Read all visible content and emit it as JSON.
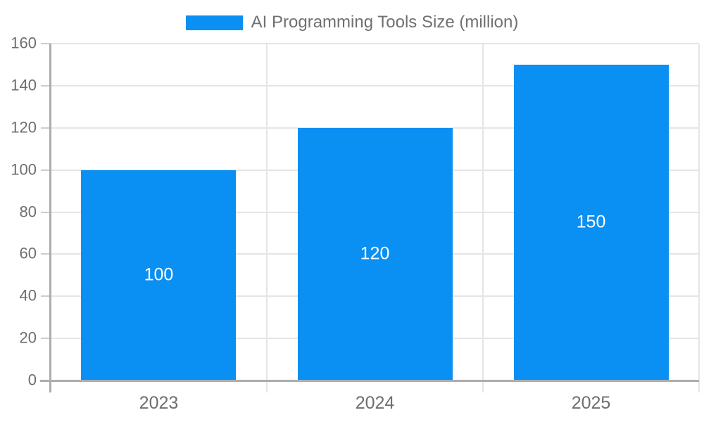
{
  "style": {
    "bar-color": "#0A8FF2",
    "grid-color": "#E5E5E5",
    "axis-color": "#ADADAD",
    "tick-color": "#CDCDCD",
    "axis-label-color": "#6E6E6E",
    "data-label-color": "#FFFFFF",
    "legend-text-color": "#707070",
    "background": "#FFFFFF"
  },
  "chart_data": {
    "type": "bar",
    "title": "",
    "series_name": "AI Programming Tools Size (million)",
    "categories": [
      "2023",
      "2024",
      "2025"
    ],
    "values": [
      100,
      120,
      150
    ],
    "data_labels": [
      "100",
      "120",
      "150"
    ],
    "xlabel": "",
    "ylabel": "",
    "ylim": [
      0,
      160
    ],
    "yticks": [
      0,
      20,
      40,
      60,
      80,
      100,
      120,
      140,
      160
    ],
    "grid": true,
    "legend_position": "top-center",
    "data_label_position": "inside-center"
  }
}
